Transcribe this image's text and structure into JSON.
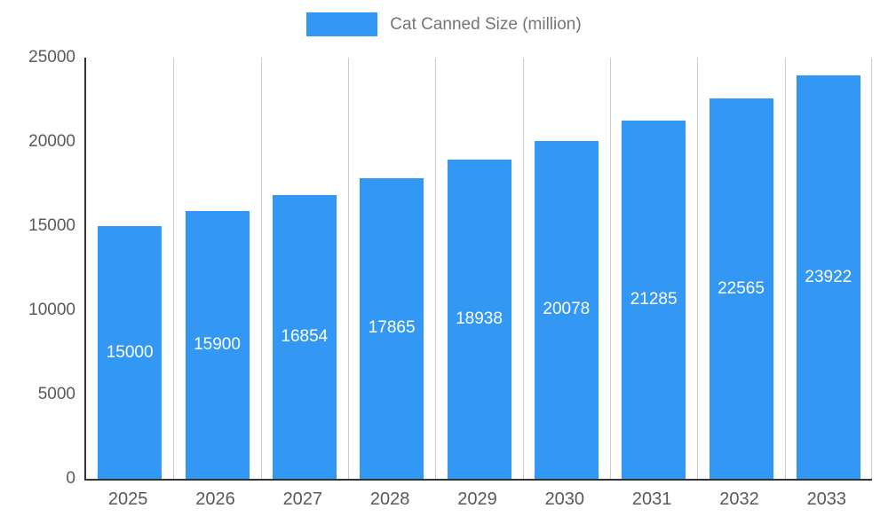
{
  "chart_data": {
    "type": "bar",
    "title": "Cat Canned Size (million)",
    "legend": "Cat Canned Size (million)",
    "legend_position": "top-center",
    "categories": [
      "2025",
      "2026",
      "2027",
      "2028",
      "2029",
      "2030",
      "2031",
      "2032",
      "2033"
    ],
    "values": [
      15000,
      15900,
      16854,
      17865,
      18938,
      20078,
      21285,
      22565,
      23922
    ],
    "xlabel": "",
    "ylabel": "",
    "ylim": [
      0,
      25000
    ],
    "yticks": [
      0,
      5000,
      10000,
      15000,
      20000,
      25000
    ],
    "grid": "vertical-only",
    "value_labels": "inside-middle-white"
  },
  "colors": {
    "bar": "#3398f4",
    "value_label": "#ffffff",
    "axis_line": "#333333",
    "gridline": "#cccccc",
    "tick_text": "#58595b",
    "legend_text": "#757575",
    "background": "#ffffff"
  }
}
